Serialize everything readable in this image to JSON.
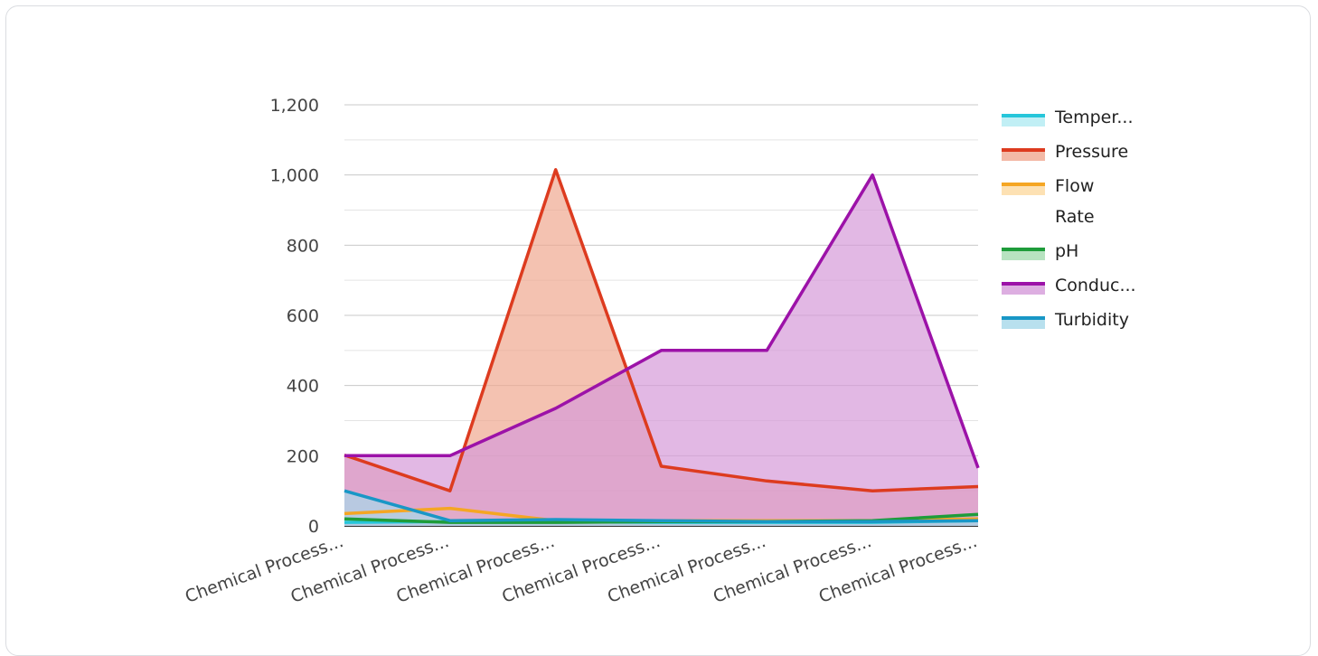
{
  "chart_data": {
    "type": "area",
    "categories": [
      "Chemical Process...",
      "Chemical Process...",
      "Chemical Process...",
      "Chemical Process...",
      "Chemical Process...",
      "Chemical Process...",
      "Chemical Process..."
    ],
    "ylim": [
      0,
      1200
    ],
    "yticks": [
      "0",
      "200",
      "400",
      "600",
      "800",
      "1,000",
      "1,200"
    ],
    "ytick_values": [
      0,
      200,
      400,
      600,
      800,
      1000,
      1200
    ],
    "grid": true,
    "legend_position": "right",
    "series": [
      {
        "name": "Temper...",
        "color": "#26c6da",
        "fill": "#b2ebf2",
        "values": [
          10,
          12,
          12,
          10,
          10,
          10,
          15
        ]
      },
      {
        "name": "Pressure",
        "color": "#dd3b1f",
        "fill": "#f0a890",
        "values": [
          202,
          100,
          1015,
          170,
          128,
          100,
          112
        ]
      },
      {
        "name": [
          "Flow",
          "Rate"
        ],
        "color": "#f5a623",
        "fill": "#fcd9a0",
        "values": [
          35,
          50,
          15,
          15,
          15,
          15,
          20
        ]
      },
      {
        "name": "pH",
        "color": "#1e9c3a",
        "fill": "#a5dcb0",
        "values": [
          20,
          10,
          10,
          12,
          12,
          15,
          33
        ]
      },
      {
        "name": "Conduc...",
        "color": "#9c12a8",
        "fill": "#d59ad9",
        "values": [
          200,
          200,
          335,
          500,
          500,
          1000,
          165
        ]
      },
      {
        "name": "Turbidity",
        "color": "#1997c6",
        "fill": "#a6d8ea",
        "values": [
          100,
          15,
          18,
          15,
          12,
          12,
          15
        ]
      }
    ]
  }
}
